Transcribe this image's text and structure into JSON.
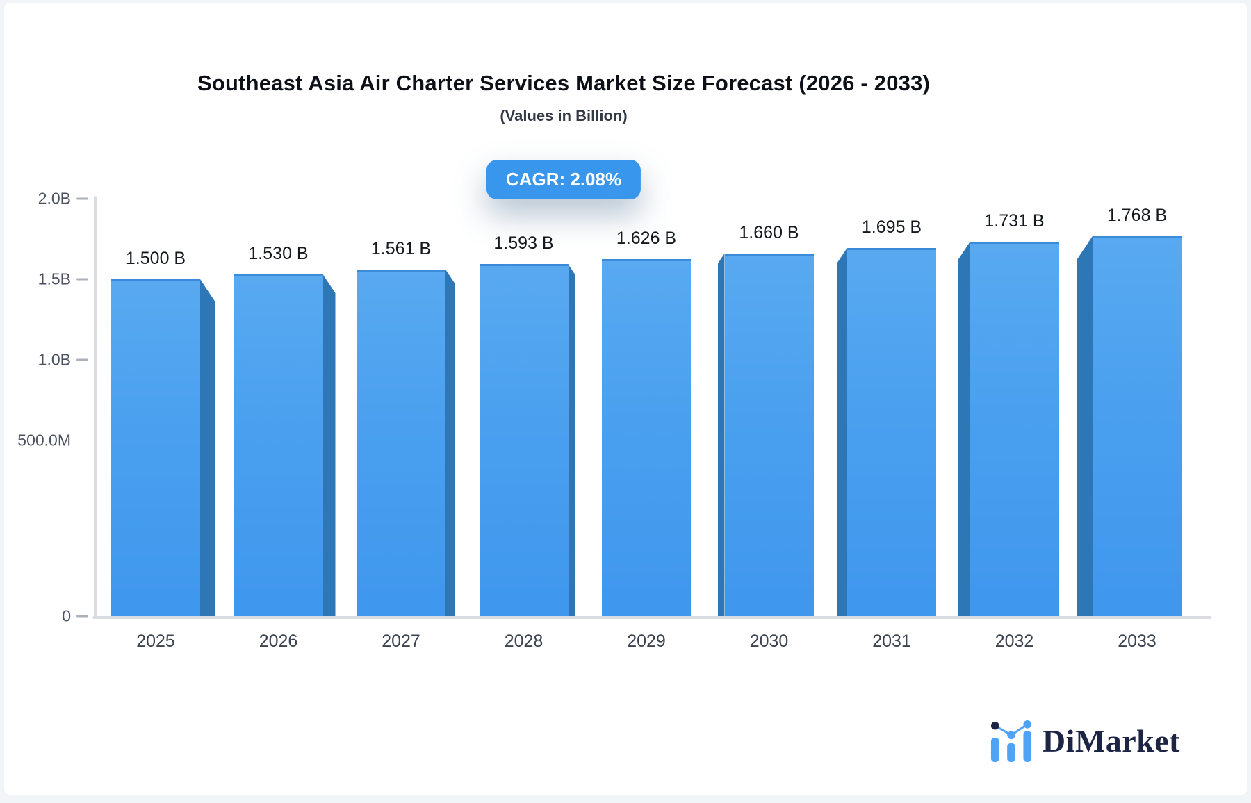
{
  "header": {
    "title": "Southeast Asia Air Charter Services Market Size Forecast (2026 - 2033)",
    "subtitle": "(Values in Billion)",
    "cagr_badge": "CAGR: 2.08%"
  },
  "chart_data": {
    "type": "bar",
    "title": "Southeast Asia Air Charter Services Market Size Forecast (2026 - 2033)",
    "subtitle": "(Values in Billion)",
    "unit": "Billion",
    "cagr_percent": "2.08%",
    "categories": [
      "2025",
      "2026",
      "2027",
      "2028",
      "2029",
      "2030",
      "2031",
      "2032",
      "2033"
    ],
    "values": [
      1.5,
      1.53,
      1.561,
      1.593,
      1.626,
      1.66,
      1.695,
      1.731,
      1.768
    ],
    "value_labels": [
      "1.500 B",
      "1.530 B",
      "1.561 B",
      "1.593 B",
      "1.626 B",
      "1.660 B",
      "1.695 B",
      "1.731 B",
      "1.768 B"
    ],
    "xlabel": "",
    "ylabel": "",
    "ylim": [
      0,
      2.0
    ],
    "y_tick_labels": [
      "2.0B",
      "1.5B",
      "1.0B",
      "500.0M",
      "0"
    ],
    "grid": "off",
    "legend": "none",
    "bar_face_color": "#4aa0ef",
    "bar_side_color": "#2e77b7",
    "style": "3d-perspective-bars"
  },
  "colors": {
    "accent_blue": "#3896ed",
    "bar_face": "#4aa0ef",
    "bar_side": "#2e77b7",
    "axis_gray": "#d9dde3",
    "logo_navy": "#1c2544",
    "logo_blue": "#4da3f7"
  },
  "logo": {
    "text": "DiMarket",
    "icon": "mini-bar-chart-icon"
  }
}
